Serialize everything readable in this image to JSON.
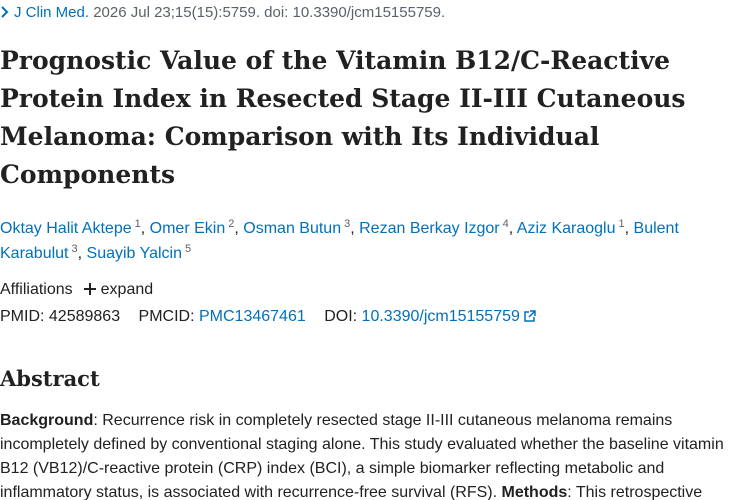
{
  "citation": {
    "journal": "J Clin Med.",
    "details": "2026 Jul 23;15(15):5759. doi: 10.3390/jcm15155759."
  },
  "title": "Prognostic Value of the Vitamin B12/C-Reactive Protein Index in Resected Stage II-III Cutaneous Melanoma: Comparison with Its Individual Components",
  "author_separator": ",",
  "authors": [
    {
      "name": "Oktay Halit Aktepe",
      "affiliation": "1"
    },
    {
      "name": "Omer Ekin",
      "affiliation": "2"
    },
    {
      "name": "Osman Butun",
      "affiliation": "3"
    },
    {
      "name": "Rezan Berkay Izgor",
      "affiliation": "4"
    },
    {
      "name": "Aziz Karaoglu",
      "affiliation": "1"
    },
    {
      "name": "Bulent Karabulut",
      "affiliation": "3"
    },
    {
      "name": "Suayib Yalcin",
      "affiliation": "5"
    }
  ],
  "affiliations": {
    "label": "Affiliations",
    "toggle": "expand"
  },
  "identifiers": {
    "pmid_label": "PMID:",
    "pmid": "42589863",
    "pmcid_label": "PMCID:",
    "pmcid": "PMC13467461",
    "doi_label": "DOI:",
    "doi": "10.3390/jcm15155759"
  },
  "abstract": {
    "heading": "Abstract",
    "sections": [
      {
        "label": "Background",
        "text": ": Recurrence risk in completely resected stage II-III cutaneous melanoma remains incompletely defined by conventional staging alone. This study evaluated whether the baseline vitamin B12 (VB12)/C-reactive protein (CRP) index (BCI), a simple biomarker reflecting metabolic and inflammatory status, is associated with recurrence-free survival (RFS). "
      },
      {
        "label": "Methods",
        "text": ": This retrospective"
      }
    ]
  }
}
